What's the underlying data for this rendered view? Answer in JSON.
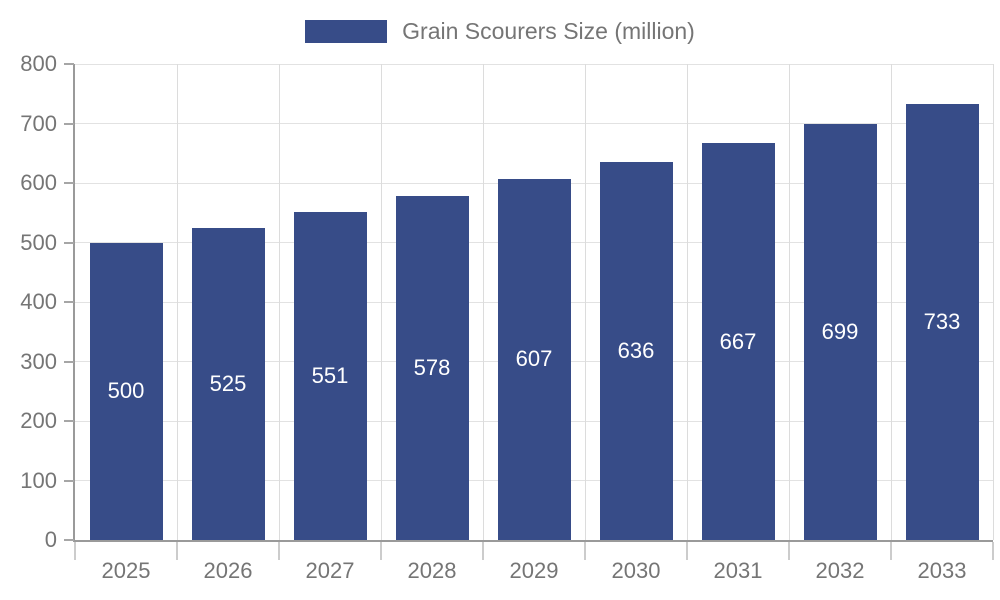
{
  "legend": {
    "label": "Grain Scourers Size (million)"
  },
  "colors": {
    "bar": "#374c88",
    "axis": "#9a9a9a",
    "grid": "#e2e2e2",
    "axis_label": "#757575",
    "value_label": "#ffffff"
  },
  "chart_data": {
    "type": "bar",
    "title": "",
    "series_name": "Grain Scourers Size (million)",
    "categories": [
      "2025",
      "2026",
      "2027",
      "2028",
      "2029",
      "2030",
      "2031",
      "2032",
      "2033"
    ],
    "values": [
      500,
      525,
      551,
      578,
      607,
      636,
      667,
      699,
      733
    ],
    "xlabel": "",
    "ylabel": "",
    "ylim": [
      0,
      800
    ],
    "yticks": [
      0,
      100,
      200,
      300,
      400,
      500,
      600,
      700,
      800
    ],
    "grid": true,
    "legend_position": "top-center",
    "value_label_position": "inside-center"
  }
}
